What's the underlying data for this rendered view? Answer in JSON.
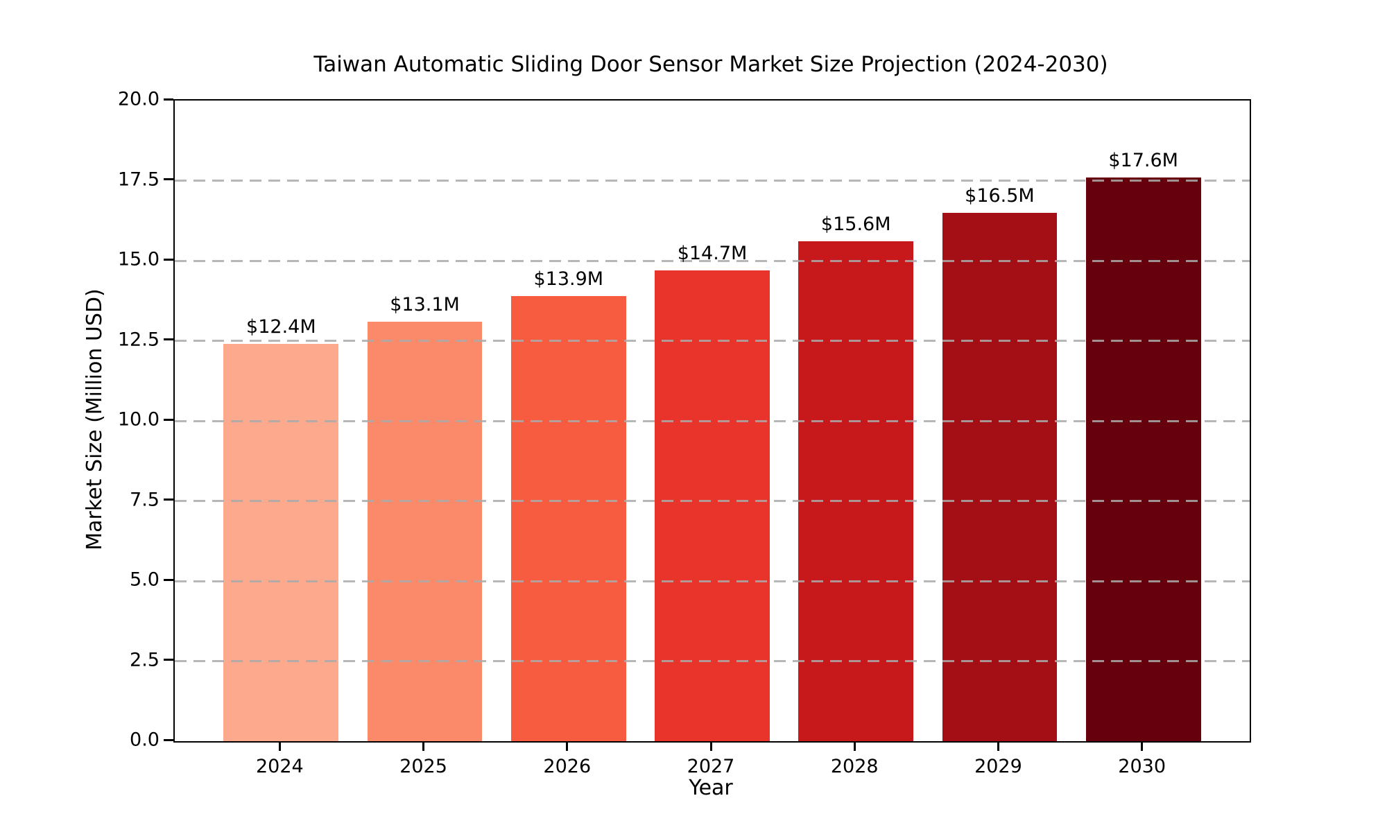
{
  "chart_data": {
    "type": "bar",
    "title": "Taiwan Automatic Sliding Door Sensor Market Size Projection (2024-2030)",
    "xlabel": "Year",
    "ylabel": "Market Size (Million USD)",
    "categories": [
      "2024",
      "2025",
      "2026",
      "2027",
      "2028",
      "2029",
      "2030"
    ],
    "values": [
      12.4,
      13.1,
      13.9,
      14.7,
      15.6,
      16.5,
      17.6
    ],
    "bar_labels": [
      "$12.4M",
      "$13.1M",
      "$13.9M",
      "$14.7M",
      "$15.6M",
      "$16.5M",
      "$17.6M"
    ],
    "bar_colors": [
      "#FCA98D",
      "#FB8A6A",
      "#F75C41",
      "#E8342A",
      "#C7181C",
      "#A30F15",
      "#67000D"
    ],
    "ylim": [
      0,
      20
    ],
    "yticks": [
      0.0,
      2.5,
      5.0,
      7.5,
      10.0,
      12.5,
      15.0,
      17.5,
      20.0
    ],
    "ytick_labels": [
      "0.0",
      "2.5",
      "5.0",
      "7.5",
      "10.0",
      "12.5",
      "15.0",
      "17.5",
      "20.0"
    ],
    "grid": "horizontal-dashed",
    "grid_color": "#aaaaaa",
    "axis_color": "#000000",
    "background_color": "#ffffff",
    "legend": "none"
  }
}
